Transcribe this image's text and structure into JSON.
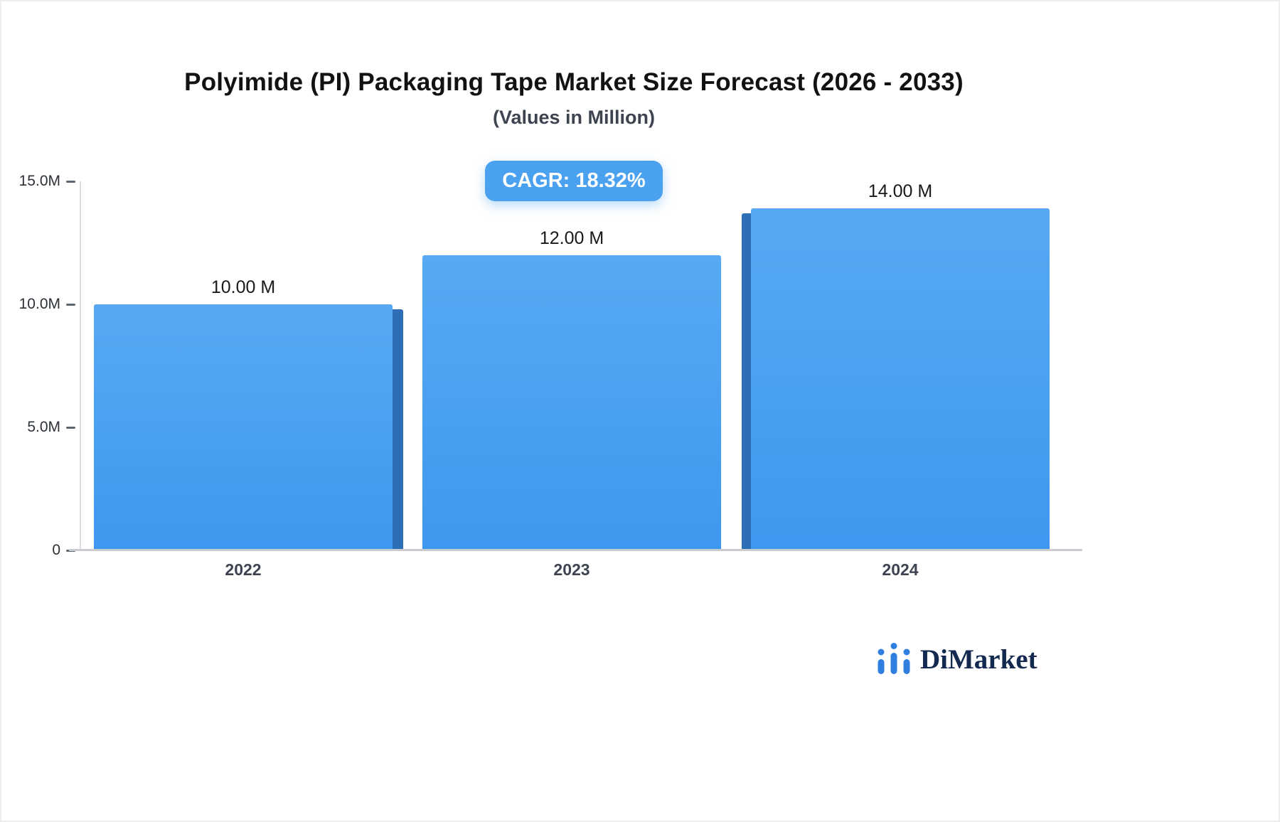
{
  "header": {
    "title": "Polyimide (PI) Packaging Tape Market Size Forecast (2026 - 2033)",
    "subtitle": "(Values in Million)"
  },
  "badge": {
    "label": "CAGR: 18.32%",
    "bg_color": "#4aa1f0",
    "text_color": "#ffffff"
  },
  "chart_data": {
    "type": "bar",
    "title": "Polyimide (PI) Packaging Tape Market Size Forecast (2026 - 2033)",
    "subtitle": "(Values in Million)",
    "categories": [
      "2022",
      "2023",
      "2024"
    ],
    "values": [
      10,
      12,
      14
    ],
    "display_values": [
      "10.00 M",
      "12.00 M",
      "14.00 M"
    ],
    "ylim": [
      0,
      15
    ],
    "yticks": {
      "labels": [
        "15.0M",
        "10.0M",
        "5.0M",
        "0"
      ],
      "values": [
        15,
        10,
        5,
        0
      ]
    },
    "xlabel": "",
    "ylabel": "",
    "grid": false,
    "legend": false,
    "bar_color_top": "#58a9f4",
    "bar_color_bottom": "#3e98ef",
    "bar_edge_color": "#2d6fb7"
  },
  "footer": {
    "brand": "DiMarket",
    "logo_icon": "bar-chart-icon",
    "brand_color": "#13294f",
    "icon_color": "#2e7fe0"
  }
}
